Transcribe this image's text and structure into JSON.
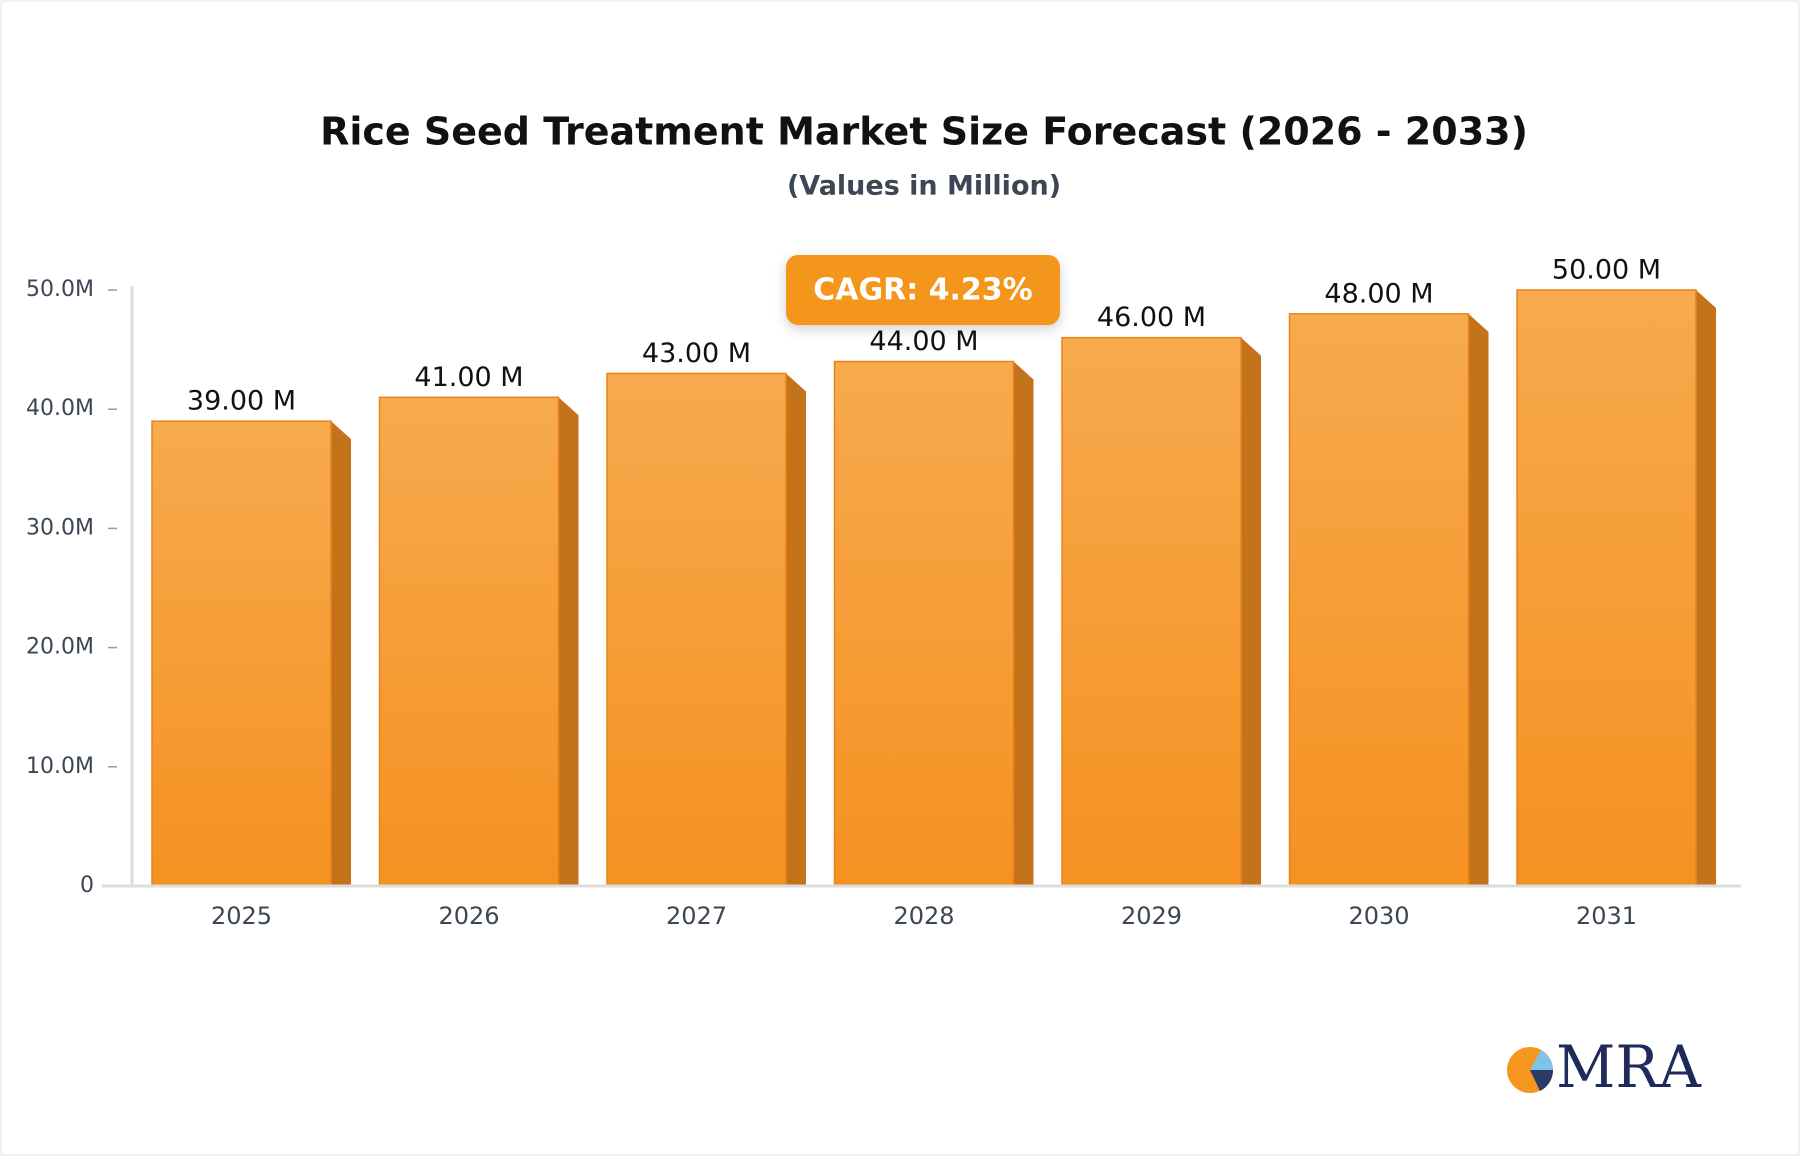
{
  "chart_data": {
    "type": "bar",
    "title": "Rice Seed Treatment Market Size Forecast (2026 - 2033)",
    "subtitle": "(Values in Million)",
    "annotation": "CAGR: 4.23%",
    "logo_text": "MRA",
    "categories": [
      "2025",
      "2026",
      "2027",
      "2028",
      "2029",
      "2030",
      "2031"
    ],
    "values": [
      39,
      41,
      43,
      44,
      46,
      48,
      50
    ],
    "value_labels": [
      "39.00 M",
      "41.00 M",
      "43.00 M",
      "44.00 M",
      "46.00 M",
      "48.00 M",
      "50.00 M"
    ],
    "color": "#f5961f",
    "ylim": [
      0,
      50
    ],
    "yticks": [
      0,
      {
        "value": 10,
        "label": "10.0M"
      },
      {
        "value": 20,
        "label": "20.0M"
      },
      {
        "value": 30,
        "label": "30.0M"
      },
      {
        "value": 40,
        "label": "40.0M"
      },
      {
        "value": 50,
        "label": "50.0M"
      }
    ],
    "grid": false
  }
}
